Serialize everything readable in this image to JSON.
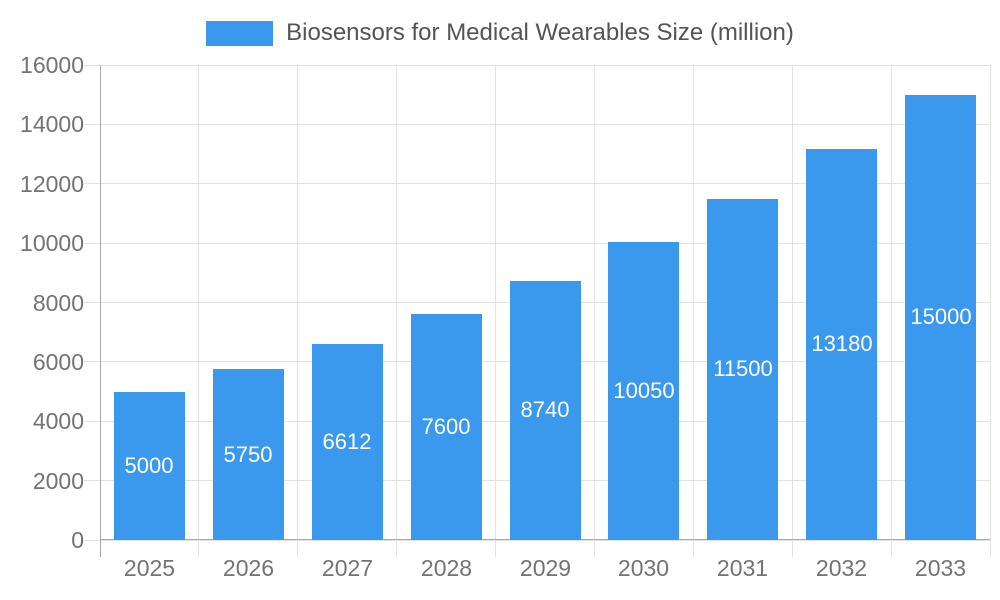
{
  "legend": {
    "label": "Biosensors for Medical Wearables Size (million)"
  },
  "chart_data": {
    "type": "bar",
    "title": "Biosensors for Medical Wearables Size (million)",
    "categories": [
      "2025",
      "2026",
      "2027",
      "2028",
      "2029",
      "2030",
      "2031",
      "2032",
      "2033"
    ],
    "values": [
      5000,
      5750,
      6612,
      7600,
      8740,
      10050,
      11500,
      13180,
      15000
    ],
    "xlabel": "",
    "ylabel": "",
    "ylim": [
      0,
      16000
    ],
    "ytick_step": 2000,
    "ytick_labels": [
      "0",
      "2000",
      "4000",
      "6000",
      "8000",
      "10000",
      "12000",
      "14000",
      "16000"
    ],
    "grid": true,
    "legend_position": "top-center",
    "bar_value_labels": "inside-centered"
  },
  "colors": {
    "bar": "#3a99ec",
    "bar_label": "#ffffff",
    "axis": "#a8a8a8",
    "gridline": "#e2e2e2",
    "tick_text": "#737373",
    "legend_text": "#545454",
    "background": "#ffffff"
  }
}
